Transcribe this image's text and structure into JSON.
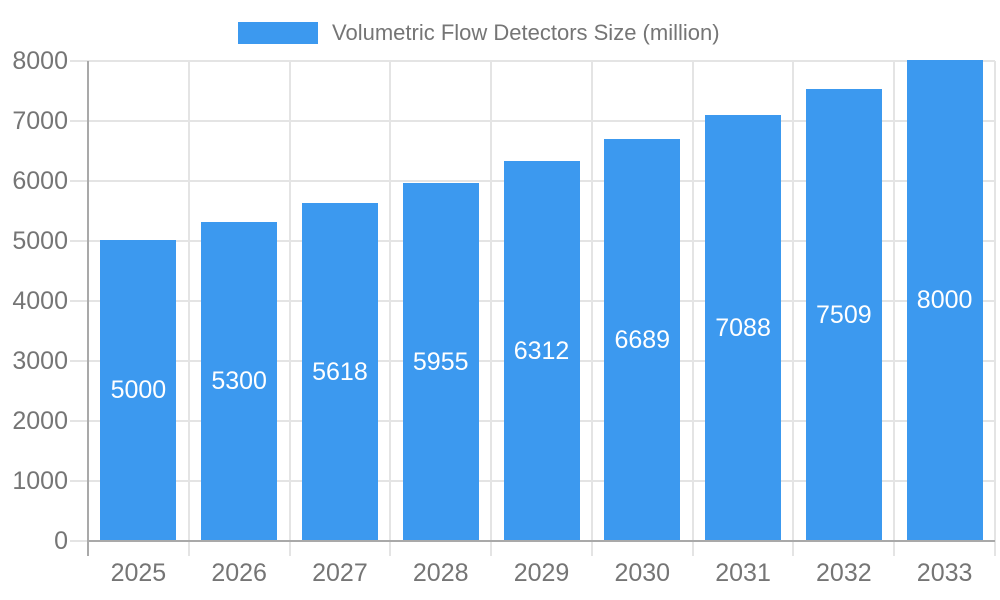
{
  "legend": {
    "label": "Volumetric Flow Detectors Size (million)"
  },
  "chart_data": {
    "type": "bar",
    "title": "Volumetric Flow Detectors Size (million)",
    "categories": [
      "2025",
      "2026",
      "2027",
      "2028",
      "2029",
      "2030",
      "2031",
      "2032",
      "2033"
    ],
    "values": [
      5000,
      5300,
      5618,
      5955,
      6312,
      6689,
      7088,
      7509,
      8000
    ],
    "value_labels": [
      "5000",
      "5300",
      "5618",
      "5955",
      "6312",
      "6689",
      "7088",
      "7509",
      "8000"
    ],
    "y_tick_labels": [
      "0",
      "1000",
      "2000",
      "3000",
      "4000",
      "5000",
      "6000",
      "7000",
      "8000"
    ],
    "ylim": [
      0,
      8000
    ],
    "y_tick_step": 1000,
    "grid": "on",
    "legend_position": "top",
    "bar_color": "#3C99EF",
    "value_label_color": "#ffffff",
    "axis_label_color": "#757575",
    "grid_color": "#e4e4e4",
    "axis_line_color": "#a9a9a9"
  }
}
